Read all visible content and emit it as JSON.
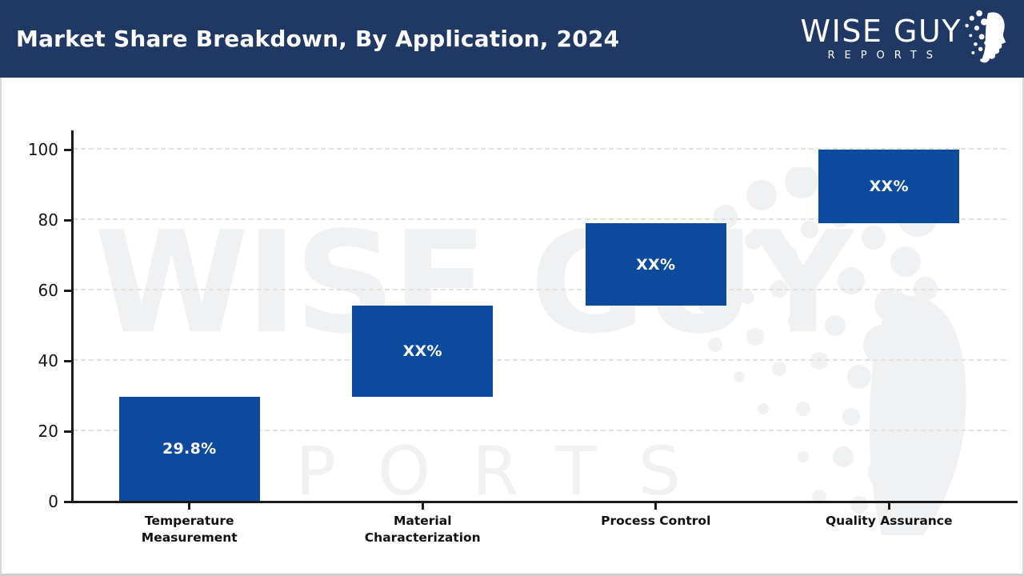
{
  "header": {
    "title": "Market Share Breakdown, By Application, 2024",
    "bg_color": "#203864",
    "logo": {
      "line1": "WISE GUY",
      "line2": "REPORTS"
    }
  },
  "watermark": {
    "line1": "WISE GUY",
    "line2": "REPORTS"
  },
  "chart_data": {
    "type": "bar",
    "subtype": "floating-waterfall",
    "title": "Market Share Breakdown, By Application, 2024",
    "categories": [
      "Temperature Measurement",
      "Material Characterization",
      "Process Control",
      "Quality Assurance"
    ],
    "series": [
      {
        "name": "Market Share (%)",
        "ranges": [
          [
            0,
            29.8
          ],
          [
            29.8,
            55.7
          ],
          [
            55.6,
            79.1
          ],
          [
            79.1,
            100
          ]
        ],
        "segment_sizes": [
          29.8,
          25.9,
          23.5,
          20.9
        ],
        "labels": [
          "29.8%",
          "XX%",
          "XX%",
          "XX%"
        ]
      }
    ],
    "xlabel": "",
    "ylabel": "",
    "ylim": [
      0,
      105.5
    ],
    "yticks": [
      0,
      20,
      40,
      60,
      80,
      100
    ],
    "grid": "horizontal-dashed",
    "legend": "none",
    "bar_color": "#0b4a9c",
    "bar_label_color": "#ffffff",
    "bar_width_pct": 15.1
  }
}
